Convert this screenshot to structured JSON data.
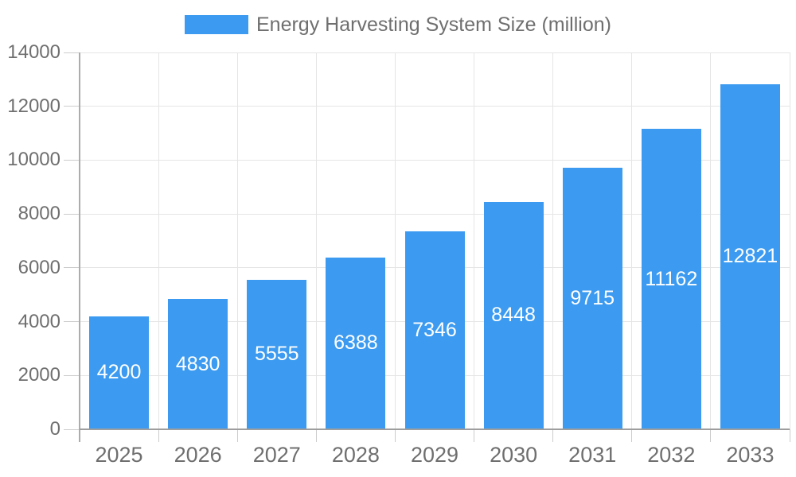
{
  "legend": {
    "label": "Energy Harvesting System Size (million)"
  },
  "chart_data": {
    "type": "bar",
    "title": "Energy Harvesting System Size (million)",
    "series_name": "Energy Harvesting System Size (million)",
    "categories": [
      "2025",
      "2026",
      "2027",
      "2028",
      "2029",
      "2030",
      "2031",
      "2032",
      "2033"
    ],
    "values": [
      4200,
      4830,
      5555,
      6388,
      7346,
      8448,
      9715,
      11162,
      12821
    ],
    "value_labels": [
      "4200",
      "4830",
      "5555",
      "6388",
      "7346",
      "8448",
      "9715",
      "11162",
      "12821"
    ],
    "xlabel": "",
    "ylabel": "",
    "ylim": [
      0,
      14000
    ],
    "yticks": [
      0,
      2000,
      4000,
      6000,
      8000,
      10000,
      12000,
      14000
    ],
    "ytick_labels": [
      "0",
      "2000",
      "4000",
      "6000",
      "8000",
      "10000",
      "12000",
      "14000"
    ],
    "grid": true,
    "legend_position": "top-center",
    "value_label_position": "inside-center",
    "colors": {
      "bar": "#3C9BF0",
      "grid": "#E5E5E5",
      "tick": "#CCCCCC",
      "axis_text": "#6F6F6F",
      "value_label": "#FFFFFF",
      "x_axis_line": "#9E9E9E",
      "y_axis_line": "#ACACAC"
    }
  }
}
